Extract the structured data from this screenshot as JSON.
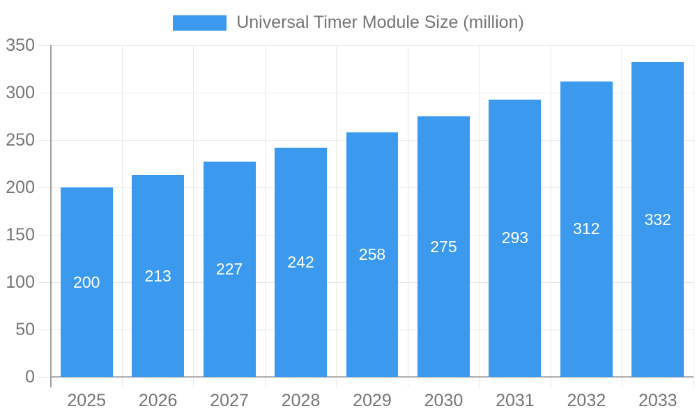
{
  "legend": {
    "label": "Universal Timer Module Size (million)"
  },
  "colors": {
    "bar": "#3b99ee",
    "axis_text": "#757575",
    "grid_line": "#e8e8e8",
    "y_axis_line": "#9e9e9e",
    "baseline": "#b0b0b0",
    "data_label": "#ffffff",
    "background": "#ffffff"
  },
  "chart_data": {
    "type": "bar",
    "title": "Universal Timer Module Size (million)",
    "categories": [
      "2025",
      "2026",
      "2027",
      "2028",
      "2029",
      "2030",
      "2031",
      "2032",
      "2033"
    ],
    "values": [
      200,
      213,
      227,
      242,
      258,
      275,
      293,
      312,
      332
    ],
    "xlabel": "",
    "ylabel": "",
    "ylim": [
      0,
      350
    ],
    "ytick_step": 50,
    "ytick_labels": [
      "0",
      "50",
      "100",
      "150",
      "200",
      "250",
      "300",
      "350"
    ],
    "grid": true,
    "legend_position": "top",
    "data_labels": "inside-center",
    "bar_color": "#3b99ee"
  }
}
